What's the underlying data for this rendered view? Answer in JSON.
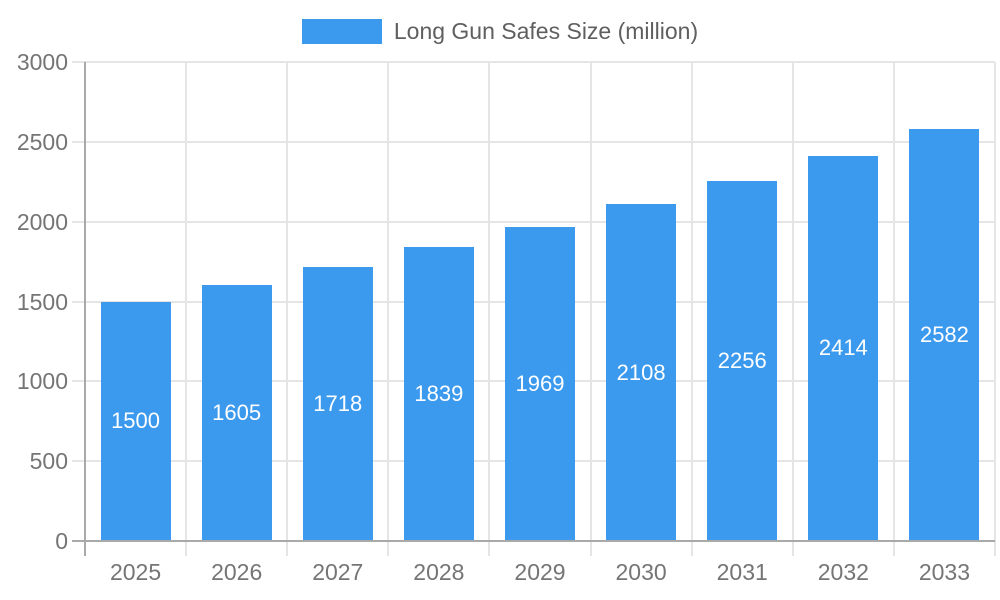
{
  "chart_data": {
    "type": "bar",
    "title": "Long Gun Safes Size (million)",
    "categories": [
      "2025",
      "2026",
      "2027",
      "2028",
      "2029",
      "2030",
      "2031",
      "2032",
      "2033"
    ],
    "values": [
      1500,
      1605,
      1718,
      1839,
      1969,
      2108,
      2256,
      2414,
      2582
    ],
    "series": [
      {
        "name": "Long Gun Safes Size (million)",
        "values": [
          1500,
          1605,
          1718,
          1839,
          1969,
          2108,
          2256,
          2414,
          2582
        ]
      }
    ],
    "xlabel": "",
    "ylabel": "",
    "ylim": [
      0,
      3000
    ],
    "yticks": [
      0,
      500,
      1000,
      1500,
      2000,
      2500,
      3000
    ],
    "grid": true,
    "legend_position": "top",
    "value_labels": "inside-center",
    "colors": {
      "bar": "#3B99EE",
      "value_label": "#FFFFFF",
      "grid_line": "#E5E5E5",
      "axis_line": "#A9A9A9",
      "axis_text": "#757575",
      "legend_text": "#5F5F5F",
      "background": "#FFFFFF"
    }
  }
}
